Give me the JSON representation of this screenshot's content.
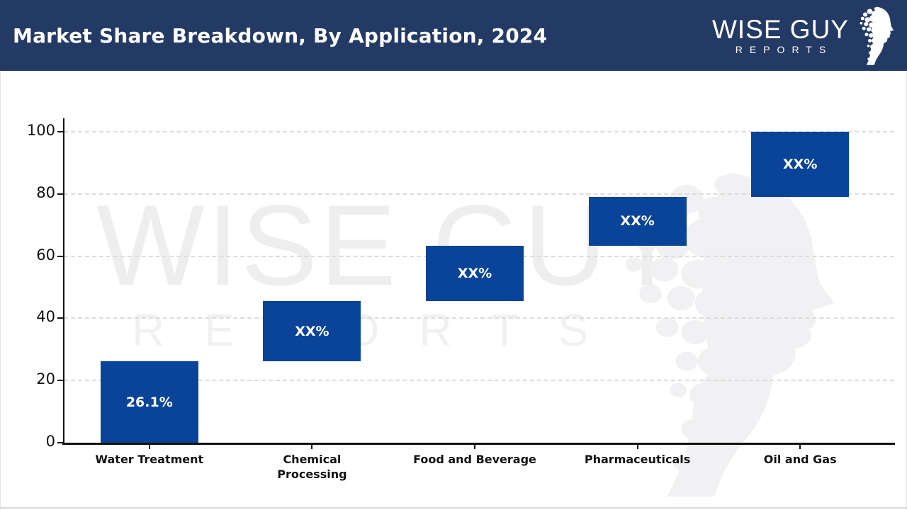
{
  "header": {
    "title": "Market Share Breakdown, By Application, 2024"
  },
  "logo": {
    "line1": "WISE GUY",
    "line2": "REPORTS",
    "head_icon": "wiseguy-head-icon"
  },
  "watermark": {
    "line1": "WISE GUY",
    "line2": "REPORTS"
  },
  "colors": {
    "header_bg": "#233a64",
    "bar": "#0a4499",
    "grid": "#dcdcdc",
    "watermark_text": "#eeeeef",
    "watermark_faint": "#f1f1f3",
    "bottom_rule": "#d9d9d9"
  },
  "chart_data": {
    "type": "bar",
    "subtype": "waterfall",
    "title": "Market Share Breakdown, By Application, 2024",
    "xlabel": "",
    "ylabel": "",
    "ylim": [
      0,
      104
    ],
    "yticks": [
      0,
      20,
      40,
      60,
      80,
      100
    ],
    "grid": "dashed-horizontal",
    "legend": "none",
    "categories": [
      "Water Treatment",
      "Chemical\nProcessing",
      "Food and Beverage",
      "Pharmaceuticals",
      "Oil and Gas"
    ],
    "segments": [
      {
        "category": "Water Treatment",
        "start": 0,
        "end": 26.1,
        "label": "26.1%"
      },
      {
        "category": "Chemical\nProcessing",
        "start": 26.1,
        "end": 45.5,
        "label": "XX%"
      },
      {
        "category": "Food and Beverage",
        "start": 45.5,
        "end": 63.3,
        "label": "XX%"
      },
      {
        "category": "Pharmaceuticals",
        "start": 63.3,
        "end": 79.1,
        "label": "XX%"
      },
      {
        "category": "Oil and Gas",
        "start": 79.1,
        "end": 100,
        "label": "XX%"
      }
    ]
  }
}
